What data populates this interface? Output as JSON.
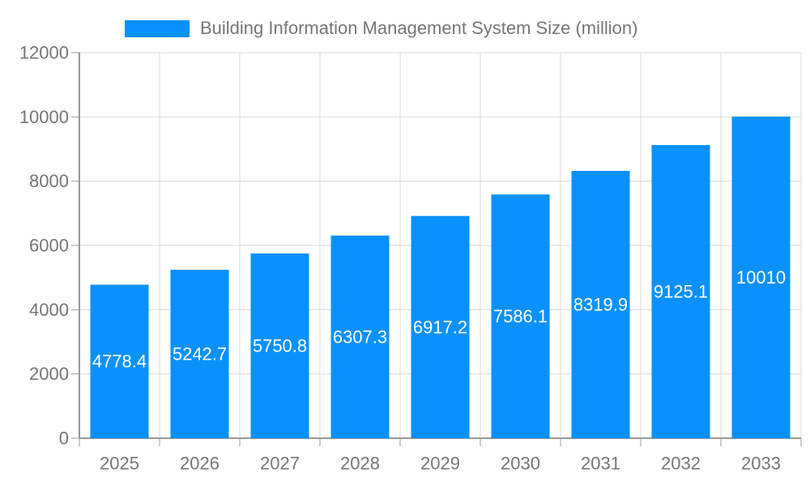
{
  "chart_data": {
    "type": "bar",
    "title": "Building Information Management System Size (million)",
    "legend_position": "top-left",
    "categories": [
      "2025",
      "2026",
      "2027",
      "2028",
      "2029",
      "2030",
      "2031",
      "2032",
      "2033"
    ],
    "values": [
      4778.4,
      5242.7,
      5750.8,
      6307.3,
      6917.2,
      7586.1,
      8319.9,
      9125.1,
      10010
    ],
    "value_labels": [
      "4778.4",
      "5242.7",
      "5750.8",
      "6307.3",
      "6917.2",
      "7586.1",
      "8319.9",
      "9125.1",
      "10010"
    ],
    "xlabel": "",
    "ylabel": "",
    "ylim": [
      0,
      12000
    ],
    "yticks": [
      0,
      2000,
      4000,
      6000,
      8000,
      10000,
      12000
    ],
    "ytick_labels": [
      "0",
      "2000",
      "4000",
      "6000",
      "8000",
      "10000",
      "12000"
    ],
    "grid": true,
    "colors": {
      "bar": "#0991fb",
      "bar_value_text": "#ffffff",
      "axis_text": "#757575",
      "legend_text": "#757575",
      "gridline": "#d9d9d9",
      "axis_line": "#999999",
      "tick_mark": "#999999",
      "background": "#ffffff"
    }
  }
}
